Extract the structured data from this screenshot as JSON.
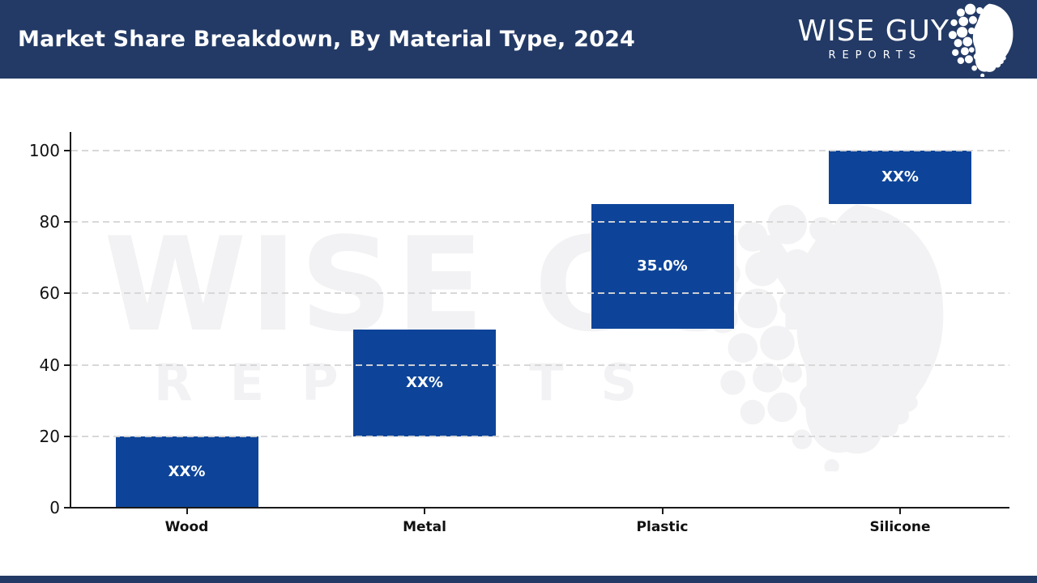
{
  "header": {
    "title": "Market Share Breakdown, By Material Type, 2024"
  },
  "logo": {
    "name": "WISE GUY",
    "sub": "REPORTS",
    "face_icon": "dotted-profile-face"
  },
  "watermark": {
    "line1": "WISE GUY",
    "line2": "REPORTS",
    "face_icon": "dotted-profile-face"
  },
  "chart_data": {
    "type": "bar",
    "subtype": "floating-waterfall",
    "title": "Market Share Breakdown, By Material Type, 2024",
    "categories": [
      "Wood",
      "Metal",
      "Plastic",
      "Silicone"
    ],
    "bars": [
      {
        "category": "Wood",
        "from": 0,
        "to": 20,
        "label": "XX%"
      },
      {
        "category": "Metal",
        "from": 20,
        "to": 50,
        "label": "XX%"
      },
      {
        "category": "Plastic",
        "from": 50,
        "to": 85,
        "label": "35.0%"
      },
      {
        "category": "Silicone",
        "from": 85,
        "to": 100,
        "label": "XX%"
      }
    ],
    "xlabel": "",
    "ylabel": "",
    "ylim": [
      0,
      100
    ],
    "yticks": [
      0,
      20,
      40,
      60,
      80,
      100
    ],
    "grid": "dashed-horizontal",
    "legend": "none"
  },
  "colors": {
    "header_bg": "#233A66",
    "footer_bg": "#233A66",
    "bar": "#0D4499",
    "bar_label": "#FFFFFF",
    "grid": "#D6D6D6",
    "axis": "#1A1A1A",
    "watermark": "#F2F2F4"
  }
}
